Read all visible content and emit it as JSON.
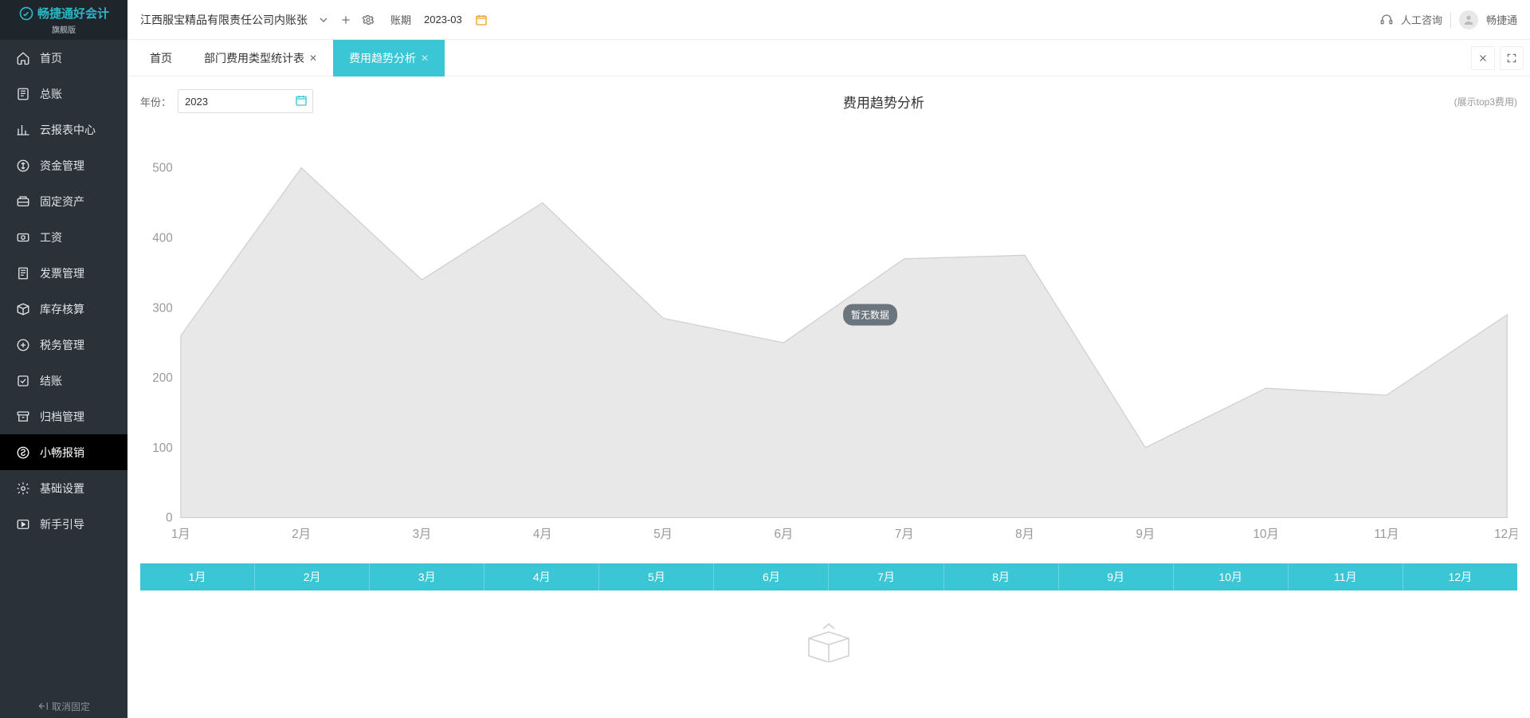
{
  "brand": {
    "name": "畅捷通好会计",
    "edition": "旗舰版"
  },
  "sidebar": {
    "items": [
      {
        "label": "首页",
        "icon": "home"
      },
      {
        "label": "总账",
        "icon": "ledger"
      },
      {
        "label": "云报表中心",
        "icon": "reports"
      },
      {
        "label": "资金管理",
        "icon": "funds"
      },
      {
        "label": "固定资产",
        "icon": "assets"
      },
      {
        "label": "工资",
        "icon": "salary"
      },
      {
        "label": "发票管理",
        "icon": "invoice"
      },
      {
        "label": "库存核算",
        "icon": "inventory"
      },
      {
        "label": "税务管理",
        "icon": "tax"
      },
      {
        "label": "结账",
        "icon": "close"
      },
      {
        "label": "归档管理",
        "icon": "archive"
      },
      {
        "label": "小畅报销",
        "icon": "expense",
        "active": true
      },
      {
        "label": "基础设置",
        "icon": "settings"
      },
      {
        "label": "新手引导",
        "icon": "guide"
      }
    ],
    "pin": "取消固定"
  },
  "topbar": {
    "company": "江西服宝精品有限责任公司内账张",
    "period_label": "账期",
    "period_value": "2023-03",
    "help": "人工咨询",
    "user": "畅捷通"
  },
  "tabs": [
    {
      "label": "首页",
      "closable": false
    },
    {
      "label": "部门费用类型统计表",
      "closable": true
    },
    {
      "label": "费用趋势分析",
      "closable": true,
      "active": true
    }
  ],
  "page": {
    "year_label": "年份：",
    "year_value": "2023",
    "title": "费用趋势分析",
    "hint": "(展示top3费用)",
    "tooltip": "暂无数据"
  },
  "chart": {
    "type": "area",
    "x_labels": [
      "1月",
      "2月",
      "3月",
      "4月",
      "5月",
      "6月",
      "7月",
      "8月",
      "9月",
      "10月",
      "11月",
      "12月"
    ],
    "y_ticks": [
      0,
      100,
      200,
      300,
      400,
      500
    ],
    "ylim": [
      0,
      550
    ],
    "values": [
      260,
      500,
      340,
      450,
      285,
      250,
      370,
      375,
      100,
      185,
      175,
      290
    ],
    "area_color": "#e8e8e8",
    "line_color": "#d0d0d0",
    "axis_color": "#999999",
    "tick_font_size": 12,
    "background": "#ffffff"
  },
  "month_strip": [
    "1月",
    "2月",
    "3月",
    "4月",
    "5月",
    "6月",
    "7月",
    "8月",
    "9月",
    "10月",
    "11月",
    "12月"
  ],
  "accent": "#3bc6d6"
}
